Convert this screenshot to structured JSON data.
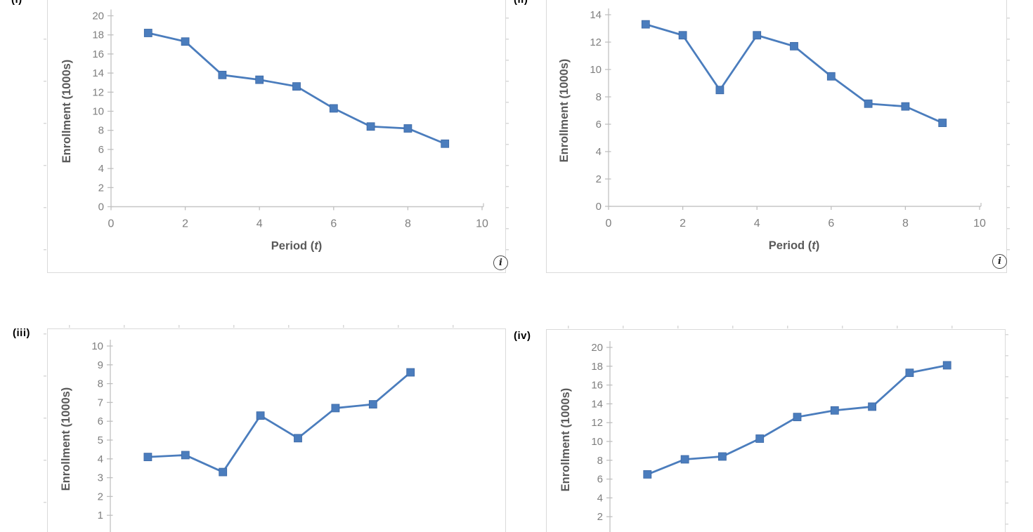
{
  "figure": {
    "description": "Four enrollment time-series line charts",
    "info_icon_glyph": "i",
    "colors": {
      "series_line": "#4b7dbd",
      "marker_fill": "#4b7dbd",
      "marker_edge": "#3c68a5",
      "axis_line": "#c6c6c6",
      "tick_mark": "#bfbfbf",
      "tick_label": "#7f7f7f",
      "axis_title": "#595959",
      "panel_border": "#dadada",
      "corner_label": "#000000"
    }
  },
  "chart_data": [
    {
      "id": "i",
      "label": "(i)",
      "type": "line",
      "marker": "square",
      "grid": false,
      "legend": "none",
      "ylabel": "Enrollment (1000s)",
      "xlabel": "Period (t)",
      "x": [
        1,
        2,
        3,
        4,
        5,
        6,
        7,
        8,
        9
      ],
      "y": [
        18.2,
        17.3,
        13.8,
        13.3,
        12.6,
        10.3,
        8.4,
        8.2,
        6.6
      ],
      "xlim": [
        0,
        10
      ],
      "ylim": [
        0,
        20
      ],
      "xticks": [
        0,
        2,
        4,
        6,
        8,
        10
      ],
      "yticks": [
        20,
        18,
        16,
        14,
        12,
        10,
        8,
        6,
        4,
        2,
        0
      ],
      "x_axis_visible": true,
      "info_icon": true
    },
    {
      "id": "ii",
      "label": "(ii)",
      "type": "line",
      "marker": "square",
      "grid": false,
      "legend": "none",
      "ylabel": "Enrollment (1000s)",
      "xlabel": "Period (t)",
      "x": [
        1,
        2,
        3,
        4,
        5,
        6,
        7,
        8,
        9
      ],
      "y": [
        13.3,
        12.5,
        8.5,
        12.5,
        11.7,
        9.5,
        7.5,
        7.3,
        6.1
      ],
      "xlim": [
        0,
        10
      ],
      "ylim": [
        0,
        14
      ],
      "xticks": [
        0,
        2,
        4,
        6,
        8,
        10
      ],
      "yticks": [
        14,
        12,
        10,
        8,
        6,
        4,
        2,
        0
      ],
      "x_axis_visible": true,
      "info_icon": true
    },
    {
      "id": "iii",
      "label": "(iii)",
      "type": "line",
      "marker": "square",
      "grid": false,
      "legend": "none",
      "ylabel": "Enrollment (1000s)",
      "xlabel": null,
      "x": [
        1,
        2,
        3,
        4,
        5,
        6,
        7,
        8
      ],
      "y": [
        4.1,
        4.2,
        3.3,
        6.3,
        5.1,
        6.7,
        6.9,
        8.6
      ],
      "xlim": [
        0,
        10
      ],
      "ylim": [
        0,
        10
      ],
      "xticks": [],
      "yticks": [
        10,
        9,
        8,
        7,
        6,
        5,
        4,
        3,
        2,
        1
      ],
      "x_axis_visible": false,
      "info_icon": false
    },
    {
      "id": "iv",
      "label": "(iv)",
      "type": "line",
      "marker": "square",
      "grid": false,
      "legend": "none",
      "ylabel": "Enrollment (1000s)",
      "xlabel": null,
      "x": [
        1,
        2,
        3,
        4,
        5,
        6,
        7,
        8,
        9
      ],
      "y": [
        6.5,
        8.1,
        8.4,
        10.3,
        12.6,
        13.3,
        13.7,
        17.3,
        18.1
      ],
      "xlim": [
        0,
        10
      ],
      "ylim": [
        0,
        20
      ],
      "xticks": [],
      "yticks": [
        20,
        18,
        16,
        14,
        12,
        10,
        8,
        6,
        4,
        2
      ],
      "x_axis_visible": false,
      "info_icon": false
    }
  ]
}
